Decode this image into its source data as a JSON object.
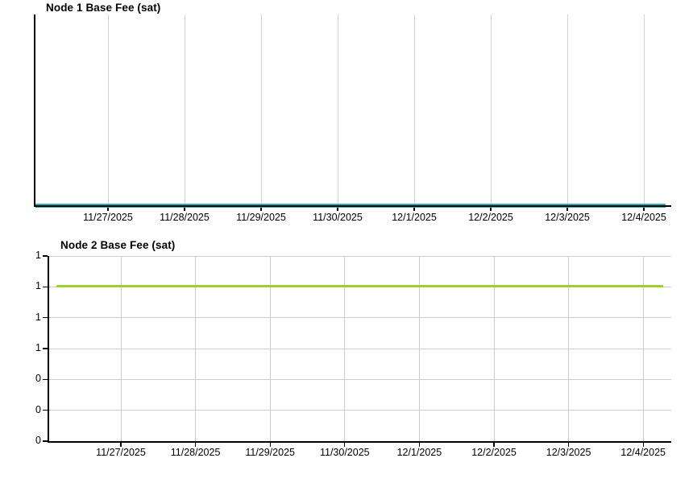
{
  "chart_data": [
    {
      "type": "line",
      "title": "Node 1 Base Fee (sat)",
      "x_tick_labels": [
        "11/27/2025",
        "11/28/2025",
        "11/29/2025",
        "11/30/2025",
        "12/1/2025",
        "12/2/2025",
        "12/3/2025",
        "12/4/2025"
      ],
      "y_tick_labels": [],
      "series": [
        {
          "name": "Node 1 Base Fee (sat)",
          "color": "#2ea9b8",
          "values": [
            0,
            0,
            0,
            0,
            0,
            0,
            0,
            0
          ]
        }
      ],
      "grid": "vertical-only",
      "grid_color": "#d2d2d2",
      "axis_color": "#000000",
      "legend": "none"
    },
    {
      "type": "line",
      "title": "Node 2 Base Fee (sat)",
      "x_tick_labels": [
        "11/27/2025",
        "11/28/2025",
        "11/29/2025",
        "11/30/2025",
        "12/1/2025",
        "12/2/2025",
        "12/3/2025",
        "12/4/2025"
      ],
      "y_tick_labels": [
        "1",
        "1",
        "1",
        "1",
        "0",
        "0",
        "0"
      ],
      "ylim": [
        0,
        1.2
      ],
      "series": [
        {
          "name": "Node 2 Base Fee (sat)",
          "color": "#9bcf32",
          "values": [
            1,
            1,
            1,
            1,
            1,
            1,
            1,
            1
          ]
        }
      ],
      "grid": "full",
      "grid_color": "#cccccc",
      "axis_color": "#000000",
      "legend": "none"
    }
  ]
}
